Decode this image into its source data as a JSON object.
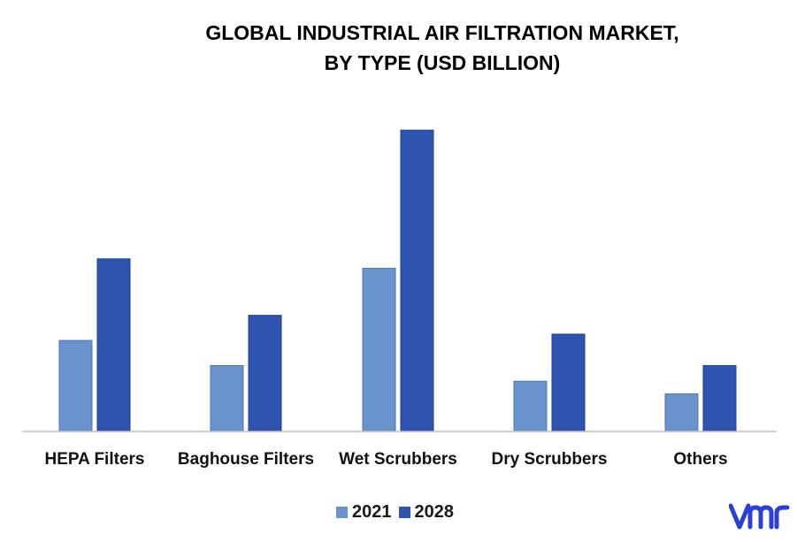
{
  "chart_data": {
    "type": "bar",
    "title": [
      "GLOBAL INDUSTRIAL AIR FILTRATION MARKET,",
      "BY TYPE (USD BILLION)"
    ],
    "categories": [
      "HEPA Filters",
      "Baghouse Filters",
      "Wet Scrubbers",
      "Dry Scrubbers",
      "Others"
    ],
    "series": [
      {
        "name": "2021",
        "values": [
          2.9,
          2.1,
          5.2,
          1.6,
          1.2
        ],
        "color": "#6a93cc"
      },
      {
        "name": "2028",
        "values": [
          5.5,
          3.7,
          9.6,
          3.1,
          2.1
        ],
        "color": "#2e54b0"
      }
    ],
    "ylim": [
      0,
      10
    ],
    "grid": false,
    "legend_position": "bottom",
    "xlabel": "",
    "ylabel": ""
  },
  "branding": {
    "logo_icon": "vmr-logo-icon",
    "color": "#2b3fd6"
  }
}
